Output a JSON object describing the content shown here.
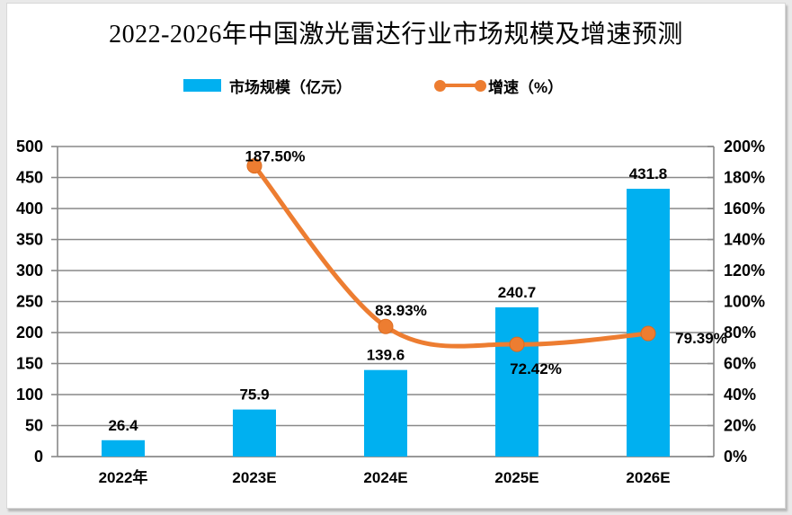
{
  "chart_data": {
    "type": "bar+line",
    "title": "2022-2026年中国激光雷达行业市场规模及增速预测",
    "categories": [
      "2022年",
      "2023E",
      "2024E",
      "2025E",
      "2026E"
    ],
    "series": [
      {
        "name": "市场规模（亿元）",
        "type": "bar",
        "axis": "left",
        "color": "#00B0F0",
        "values": [
          26.4,
          75.9,
          139.6,
          240.7,
          431.8
        ],
        "data_labels": [
          "26.4",
          "75.9",
          "139.6",
          "240.7",
          "431.8"
        ]
      },
      {
        "name": "增速（%）",
        "type": "line",
        "axis": "right",
        "color": "#ED7D31",
        "marker_stroke": "#DD6B1E",
        "values": [
          null,
          187.5,
          83.93,
          72.42,
          79.39
        ],
        "data_labels": [
          null,
          "187.50%",
          "83.93%",
          "72.42%",
          "79.39%"
        ]
      }
    ],
    "left_axis": {
      "min": 0,
      "max": 500,
      "step": 50,
      "ticks": [
        "0",
        "50",
        "100",
        "150",
        "200",
        "250",
        "300",
        "350",
        "400",
        "450",
        "500"
      ]
    },
    "right_axis": {
      "min": 0,
      "max": 200,
      "step": 20,
      "ticks": [
        "0%",
        "20%",
        "40%",
        "60%",
        "80%",
        "100%",
        "120%",
        "140%",
        "160%",
        "180%",
        "200%"
      ]
    },
    "grid": {
      "on": true,
      "color": "#898989"
    },
    "legend_position": "top",
    "text_color": "#000000"
  },
  "legend": [
    {
      "label": "市场规模（亿元）",
      "type": "bar",
      "color": "#00B0F0"
    },
    {
      "label": "增速（%）",
      "type": "line",
      "color": "#ED7D31"
    }
  ]
}
